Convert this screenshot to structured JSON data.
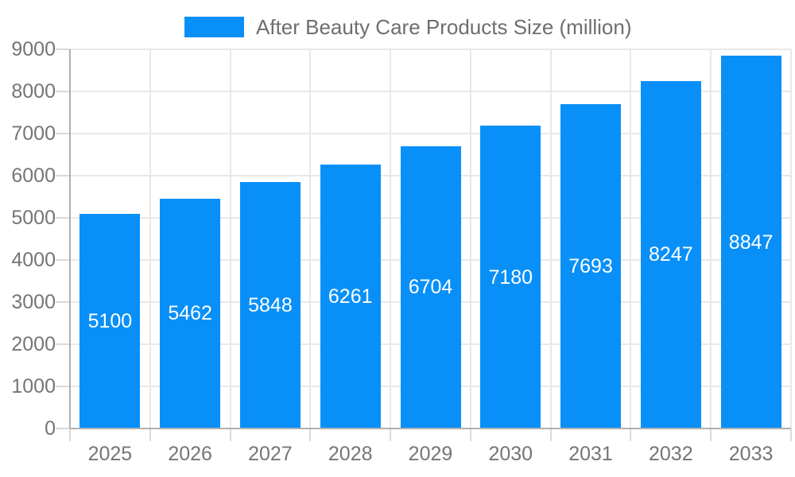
{
  "legend": {
    "label": "After Beauty Care Products Size (million)"
  },
  "chart_data": {
    "type": "bar",
    "title": "After Beauty Care Products Size (million)",
    "categories": [
      "2025",
      "2026",
      "2027",
      "2028",
      "2029",
      "2030",
      "2031",
      "2032",
      "2033"
    ],
    "values": [
      5100,
      5462,
      5848,
      6261,
      6704,
      7180,
      7693,
      8247,
      8847
    ],
    "xlabel": "",
    "ylabel": "",
    "ylim": [
      0,
      9000
    ],
    "ytick_step": 1000,
    "ytick_labels": [
      "0",
      "1000",
      "2000",
      "3000",
      "4000",
      "5000",
      "6000",
      "7000",
      "8000",
      "9000"
    ],
    "grid": true,
    "legend_position": "top",
    "value_labels": "inside-center",
    "colors": {
      "bar": "#0990f8",
      "grid": "#e8e8e8",
      "axis": "#b1b1b1",
      "tick": "#dadada",
      "axis_text": "#757575",
      "value_text": "#ffffff",
      "legend_text": "#6e6e6e",
      "background": "#ffffff"
    }
  }
}
